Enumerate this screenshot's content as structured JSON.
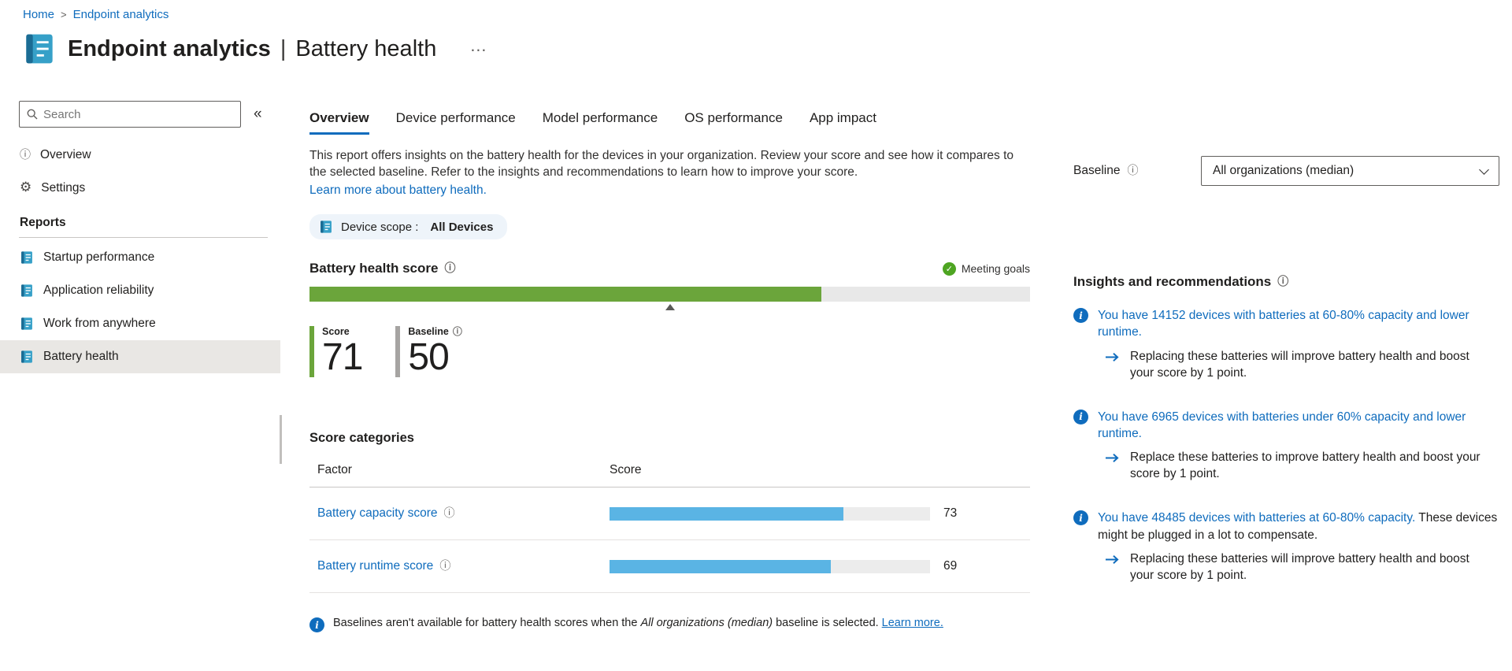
{
  "colors": {
    "accent": "#0f6cbd",
    "link": "#0f6cbd",
    "score-green": "#6ba53b",
    "status-green": "#4ea522",
    "bar-blue": "#5ab4e4",
    "bar-track": "#e8e8e8",
    "selected-bg": "#e9e7e4"
  },
  "breadcrumb": {
    "home": "Home",
    "separator": ">",
    "current": "Endpoint analytics"
  },
  "header": {
    "title": "Endpoint analytics",
    "divider": "|",
    "subtitle": "Battery health",
    "more": "…"
  },
  "sidebar": {
    "search": {
      "placeholder": "Search"
    },
    "collapse_glyph": "«",
    "items": [
      {
        "label": "Overview"
      },
      {
        "label": "Settings"
      }
    ],
    "section_title": "Reports",
    "reports": [
      {
        "label": "Startup performance"
      },
      {
        "label": "Application reliability"
      },
      {
        "label": "Work from anywhere"
      },
      {
        "label": "Battery health"
      }
    ]
  },
  "tabs": [
    {
      "label": "Overview"
    },
    {
      "label": "Device performance"
    },
    {
      "label": "Model performance"
    },
    {
      "label": "OS performance"
    },
    {
      "label": "App impact"
    }
  ],
  "overview": {
    "description": "This report offers insights on the battery health for the devices in your organization. Review your score and see how it compares to the selected baseline. Refer to the insights and recommendations to learn how to improve your score.",
    "learn_more_link": "Learn more about battery health.",
    "device_scope": {
      "label": "Device scope :",
      "value": "All Devices"
    }
  },
  "score_section": {
    "title": "Battery health score",
    "status": "Meeting goals",
    "bar_percent": 71,
    "marker_percent": 50,
    "score_label": "Score",
    "score_value": "71",
    "baseline_label": "Baseline",
    "baseline_value": "50"
  },
  "baseline_control": {
    "label": "Baseline",
    "value": "All organizations (median)"
  },
  "score_categories": {
    "title": "Score categories",
    "columns": {
      "factor": "Factor",
      "score": "Score"
    },
    "rows": [
      {
        "factor": "Battery capacity score",
        "score": 73
      },
      {
        "factor": "Battery runtime score",
        "score": 69
      }
    ]
  },
  "footnote": {
    "text_before": "Baselines aren't available for battery health scores when the",
    "italic": "All organizations (median)",
    "text_after": "baseline is selected.",
    "link": "Learn more."
  },
  "insights": {
    "title": "Insights and recommendations",
    "items": [
      {
        "link": "You have 14152 devices with batteries at 60-80% capacity and lower runtime.",
        "suffix": "",
        "recommendation": "Replacing these batteries will improve battery health and boost your score by 1 point."
      },
      {
        "link": "You have 6965 devices with batteries under 60% capacity and lower runtime.",
        "suffix": "",
        "recommendation": "Replace these batteries to improve battery health and boost your score by 1 point."
      },
      {
        "link": "You have 48485 devices with batteries at 60-80% capacity.",
        "suffix": "These devices might be plugged in a lot to compensate.",
        "recommendation": "Replacing these batteries will improve battery health and boost your score by 1 point."
      }
    ]
  }
}
